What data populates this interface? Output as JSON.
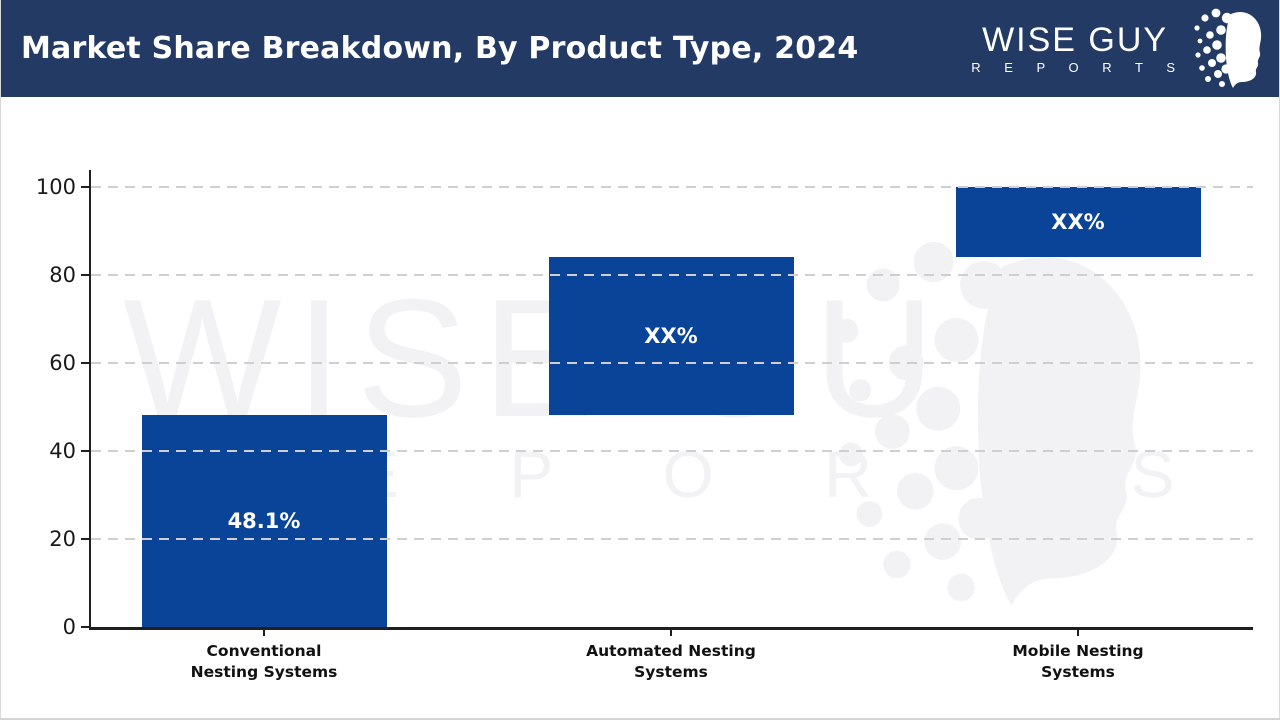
{
  "page": {
    "background": "#ffffff",
    "edge_border_color": "#d8d8d8"
  },
  "header": {
    "background_color": "#223a64",
    "title": "Market Share Breakdown, By Product Type, 2024",
    "logo": {
      "wordmark": "WISE GUY",
      "sub": "R E P O R T S"
    }
  },
  "watermark": {
    "wordmark": "WISE GU",
    "sub": "R E P O R T S"
  },
  "chart_data": {
    "type": "bar",
    "variant": "waterfall-breakdown",
    "title": "Market Share Breakdown, By Product Type, 2024",
    "categories": [
      "Conventional Nesting Systems",
      "Automated Nesting Systems",
      "Mobile Nesting Systems"
    ],
    "category_label_lines": [
      [
        "Conventional",
        "Nesting Systems"
      ],
      [
        "Automated Nesting",
        "Systems"
      ],
      [
        "Mobile Nesting",
        "Systems"
      ]
    ],
    "series": [
      {
        "name": "Conventional Nesting Systems",
        "start": 0,
        "end": 48.1,
        "label": "48.1%"
      },
      {
        "name": "Automated Nesting Systems",
        "start": 48.1,
        "end": 84,
        "label": "XX%"
      },
      {
        "name": "Mobile Nesting Systems",
        "start": 84,
        "end": 100,
        "label": "XX%"
      }
    ],
    "ylim": [
      0,
      104
    ],
    "yticks": [
      0,
      20,
      40,
      60,
      80,
      100
    ],
    "grid": "horizontal-dashed",
    "bar_color": "#0a4499",
    "bar_label_color": "#ffffff",
    "axis_color": "#1f1f1f",
    "grid_color": "#cfcfcf",
    "tick_label_color": "#1a1a1a"
  }
}
